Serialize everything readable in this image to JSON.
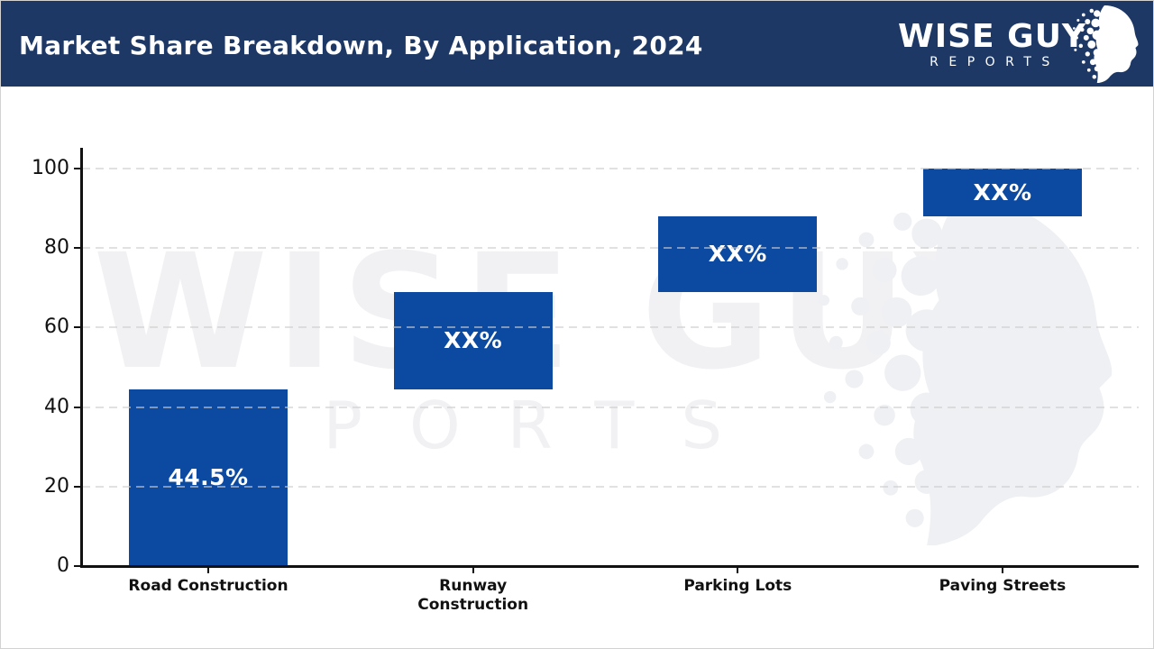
{
  "header": {
    "title": "Market Share Breakdown, By Application, 2024",
    "logo": {
      "line1": "WISE GUY",
      "line2": "REPORTS"
    }
  },
  "watermark": {
    "line1": "WISE GUY",
    "line2": "REPORTS"
  },
  "chart_data": {
    "type": "bar",
    "subtype": "waterfall",
    "title": "Market Share Breakdown, By Application, 2024",
    "categories": [
      "Road Construction",
      "Runway\nConstruction",
      "Parking Lots",
      "Paving Streets"
    ],
    "segments": [
      {
        "category": "Road Construction",
        "start": 0,
        "end": 44.5,
        "label": "44.5%"
      },
      {
        "category": "Runway Construction",
        "start": 44.5,
        "end": 69,
        "label": "XX%"
      },
      {
        "category": "Parking Lots",
        "start": 69,
        "end": 88,
        "label": "XX%"
      },
      {
        "category": "Paving Streets",
        "start": 88,
        "end": 100,
        "label": "XX%"
      }
    ],
    "yticks": [
      0,
      20,
      40,
      60,
      80,
      100
    ],
    "ylim": [
      0,
      100
    ],
    "xlabel": "",
    "ylabel": "",
    "grid": "horizontal-dashed",
    "legend": "none",
    "colors": {
      "bar": "#0b4aa0",
      "header_bg": "#1e3866",
      "grid": "#cdcdcd",
      "axis": "#111111",
      "bar_label_text": "#ffffff",
      "watermark": "#f1f1f4"
    }
  }
}
